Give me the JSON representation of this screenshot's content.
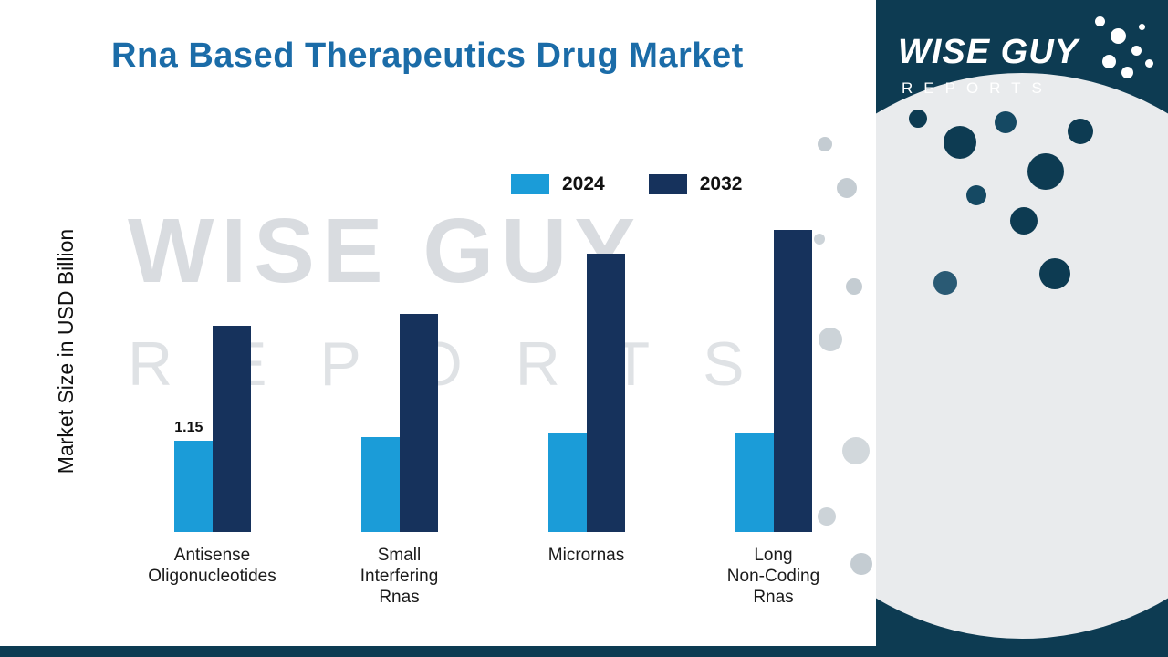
{
  "title": "Rna Based Therapeutics Drug Market",
  "ylabel": "Market Size in USD Billion",
  "brand": {
    "wordmark": "WISE GUY",
    "sub": "REPORTS"
  },
  "watermark": {
    "line1": "WISE GUY",
    "line2": "REPORTS"
  },
  "colors": {
    "title": "#1b6ca8",
    "series_2024": "#1b9cd8",
    "series_2032": "#16325c",
    "panel_background": "#0d3b52",
    "watermark_text": "#d9dce0"
  },
  "chart_data": {
    "type": "bar",
    "title": "Rna Based Therapeutics Drug Market",
    "xlabel": "",
    "ylabel": "Market Size in USD Billion",
    "ylim": [
      0,
      4.2
    ],
    "grid": false,
    "legend_position": "top",
    "categories": [
      "Antisense\nOligonucleotides",
      "Small\nInterfering\nRnas",
      "Micrornas",
      "Long\nNon-Coding\nRnas"
    ],
    "series": [
      {
        "name": "2024",
        "color": "#1b9cd8",
        "values": [
          1.15,
          1.2,
          1.25,
          1.25
        ],
        "labels": [
          "1.15",
          "",
          "",
          ""
        ]
      },
      {
        "name": "2032",
        "color": "#16325c",
        "values": [
          2.6,
          2.75,
          3.5,
          3.8
        ],
        "labels": [
          "",
          "",
          "",
          ""
        ]
      }
    ]
  }
}
